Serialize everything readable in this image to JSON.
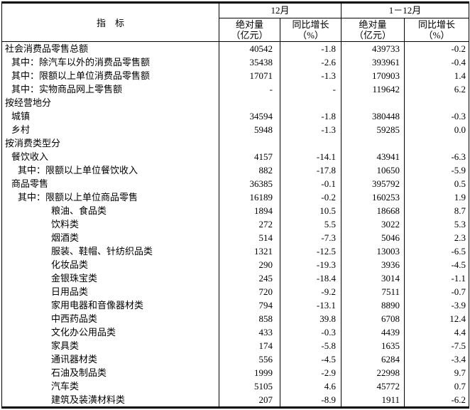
{
  "table": {
    "header": {
      "indicator": "指　标",
      "period1": "12月",
      "period2": "1－12月",
      "abs_label": "绝对量",
      "abs_unit": "（亿元）",
      "pct_label": "同比增长",
      "pct_unit": "（%）"
    },
    "rows": [
      {
        "label": "社会消费品零售总额",
        "indent": 0,
        "dec_abs": "40542",
        "dec_pct": "-1.8",
        "ytd_abs": "439733",
        "ytd_pct": "-0.2"
      },
      {
        "label": "其中：除汽车以外的消费品零售额",
        "indent": 1,
        "dec_abs": "35438",
        "dec_pct": "-2.6",
        "ytd_abs": "393961",
        "ytd_pct": "-0.4"
      },
      {
        "label": "其中：限额以上单位消费品零售额",
        "indent": 1,
        "dec_abs": "17071",
        "dec_pct": "-1.3",
        "ytd_abs": "170903",
        "ytd_pct": "1.4"
      },
      {
        "label": "其中：实物商品网上零售额",
        "indent": 1,
        "dec_abs": "-",
        "dec_pct": "-",
        "ytd_abs": "119642",
        "ytd_pct": "6.2"
      },
      {
        "label": "按经营地分",
        "indent": 0,
        "dec_abs": "",
        "dec_pct": "",
        "ytd_abs": "",
        "ytd_pct": ""
      },
      {
        "label": "城镇",
        "indent": 1,
        "dec_abs": "34594",
        "dec_pct": "-1.8",
        "ytd_abs": "380448",
        "ytd_pct": "-0.3"
      },
      {
        "label": "乡村",
        "indent": 1,
        "dec_abs": "5948",
        "dec_pct": "-1.3",
        "ytd_abs": "59285",
        "ytd_pct": "0.0"
      },
      {
        "label": "按消费类型分",
        "indent": 0,
        "dec_abs": "",
        "dec_pct": "",
        "ytd_abs": "",
        "ytd_pct": ""
      },
      {
        "label": "餐饮收入",
        "indent": 1,
        "dec_abs": "4157",
        "dec_pct": "-14.1",
        "ytd_abs": "43941",
        "ytd_pct": "-6.3"
      },
      {
        "label": "其中：限额以上单位餐饮收入",
        "indent": 2,
        "dec_abs": "882",
        "dec_pct": "-17.8",
        "ytd_abs": "10650",
        "ytd_pct": "-5.9"
      },
      {
        "label": "商品零售",
        "indent": 1,
        "dec_abs": "36385",
        "dec_pct": "-0.1",
        "ytd_abs": "395792",
        "ytd_pct": "0.5"
      },
      {
        "label": "其中：限额以上单位商品零售",
        "indent": 2,
        "dec_abs": "16189",
        "dec_pct": "-0.2",
        "ytd_abs": "160253",
        "ytd_pct": "1.9"
      },
      {
        "label": "粮油、食品类",
        "indent": 3,
        "dec_abs": "1894",
        "dec_pct": "10.5",
        "ytd_abs": "18668",
        "ytd_pct": "8.7"
      },
      {
        "label": "饮料类",
        "indent": 3,
        "dec_abs": "272",
        "dec_pct": "5.5",
        "ytd_abs": "3022",
        "ytd_pct": "5.3"
      },
      {
        "label": "烟酒类",
        "indent": 3,
        "dec_abs": "514",
        "dec_pct": "-7.3",
        "ytd_abs": "5046",
        "ytd_pct": "2.3"
      },
      {
        "label": "服装、鞋帽、针纺织品类",
        "indent": 3,
        "dec_abs": "1321",
        "dec_pct": "-12.5",
        "ytd_abs": "13003",
        "ytd_pct": "-6.5"
      },
      {
        "label": "化妆品类",
        "indent": 3,
        "dec_abs": "290",
        "dec_pct": "-19.3",
        "ytd_abs": "3936",
        "ytd_pct": "-4.5"
      },
      {
        "label": "金银珠宝类",
        "indent": 3,
        "dec_abs": "245",
        "dec_pct": "-18.4",
        "ytd_abs": "3014",
        "ytd_pct": "-1.1"
      },
      {
        "label": "日用品类",
        "indent": 3,
        "dec_abs": "720",
        "dec_pct": "-9.2",
        "ytd_abs": "7511",
        "ytd_pct": "-0.7"
      },
      {
        "label": "家用电器和音像器材类",
        "indent": 3,
        "dec_abs": "794",
        "dec_pct": "-13.1",
        "ytd_abs": "8890",
        "ytd_pct": "-3.9"
      },
      {
        "label": "中西药品类",
        "indent": 3,
        "dec_abs": "858",
        "dec_pct": "39.8",
        "ytd_abs": "6708",
        "ytd_pct": "12.4"
      },
      {
        "label": "文化办公用品类",
        "indent": 3,
        "dec_abs": "433",
        "dec_pct": "-0.3",
        "ytd_abs": "4439",
        "ytd_pct": "4.4"
      },
      {
        "label": "家具类",
        "indent": 3,
        "dec_abs": "174",
        "dec_pct": "-5.8",
        "ytd_abs": "1635",
        "ytd_pct": "-7.5"
      },
      {
        "label": "通讯器材类",
        "indent": 3,
        "dec_abs": "556",
        "dec_pct": "-4.5",
        "ytd_abs": "6284",
        "ytd_pct": "-3.4"
      },
      {
        "label": "石油及制品类",
        "indent": 3,
        "dec_abs": "1999",
        "dec_pct": "-2.9",
        "ytd_abs": "22998",
        "ytd_pct": "9.7"
      },
      {
        "label": "汽车类",
        "indent": 3,
        "dec_abs": "5105",
        "dec_pct": "4.6",
        "ytd_abs": "45772",
        "ytd_pct": "0.7"
      },
      {
        "label": "建筑及装潢材料类",
        "indent": 3,
        "dec_abs": "207",
        "dec_pct": "-8.9",
        "ytd_abs": "1911",
        "ytd_pct": "-6.2"
      }
    ]
  }
}
